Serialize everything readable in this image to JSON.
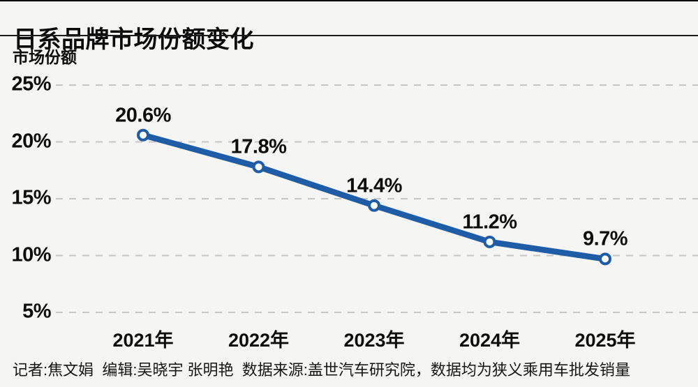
{
  "header": {
    "title": "日系品牌市场份额变化"
  },
  "chart_data": {
    "type": "line",
    "title": "日系品牌市场份额变化",
    "ylabel": "市场份额",
    "xlabel": "",
    "categories": [
      "2021年",
      "2022年",
      "2023年",
      "2024年",
      "2025年"
    ],
    "values": [
      20.6,
      17.8,
      14.4,
      11.2,
      9.7
    ],
    "point_labels": [
      "20.6%",
      "17.8%",
      "14.4%",
      "11.2%",
      "9.7%"
    ],
    "series": [
      {
        "name": "日系品牌市场份额",
        "values": [
          20.6,
          17.8,
          14.4,
          11.2,
          9.7
        ]
      }
    ],
    "yticks": [
      {
        "label": "25%",
        "value": 25
      },
      {
        "label": "20%",
        "value": 20
      },
      {
        "label": "15%",
        "value": 15
      },
      {
        "label": "10%",
        "value": 10
      },
      {
        "label": "5%",
        "value": 5
      }
    ],
    "ylim": [
      5,
      25
    ],
    "grid": "horizontal-dashed",
    "legend": "none",
    "marker": "circle-white-fill-blue-stroke"
  },
  "colors": {
    "background": "#f5f5f3",
    "line": "#1e5ca8",
    "marker_fill": "#ffffff",
    "grid": "#c6c6c6",
    "text": "#0d0d0d"
  },
  "footer": {
    "credits": "记者:焦文娟  编辑:吴晓宇 张明艳  数据来源:盖世汽车研究院，数据均为狭义乘用车批发销量"
  }
}
